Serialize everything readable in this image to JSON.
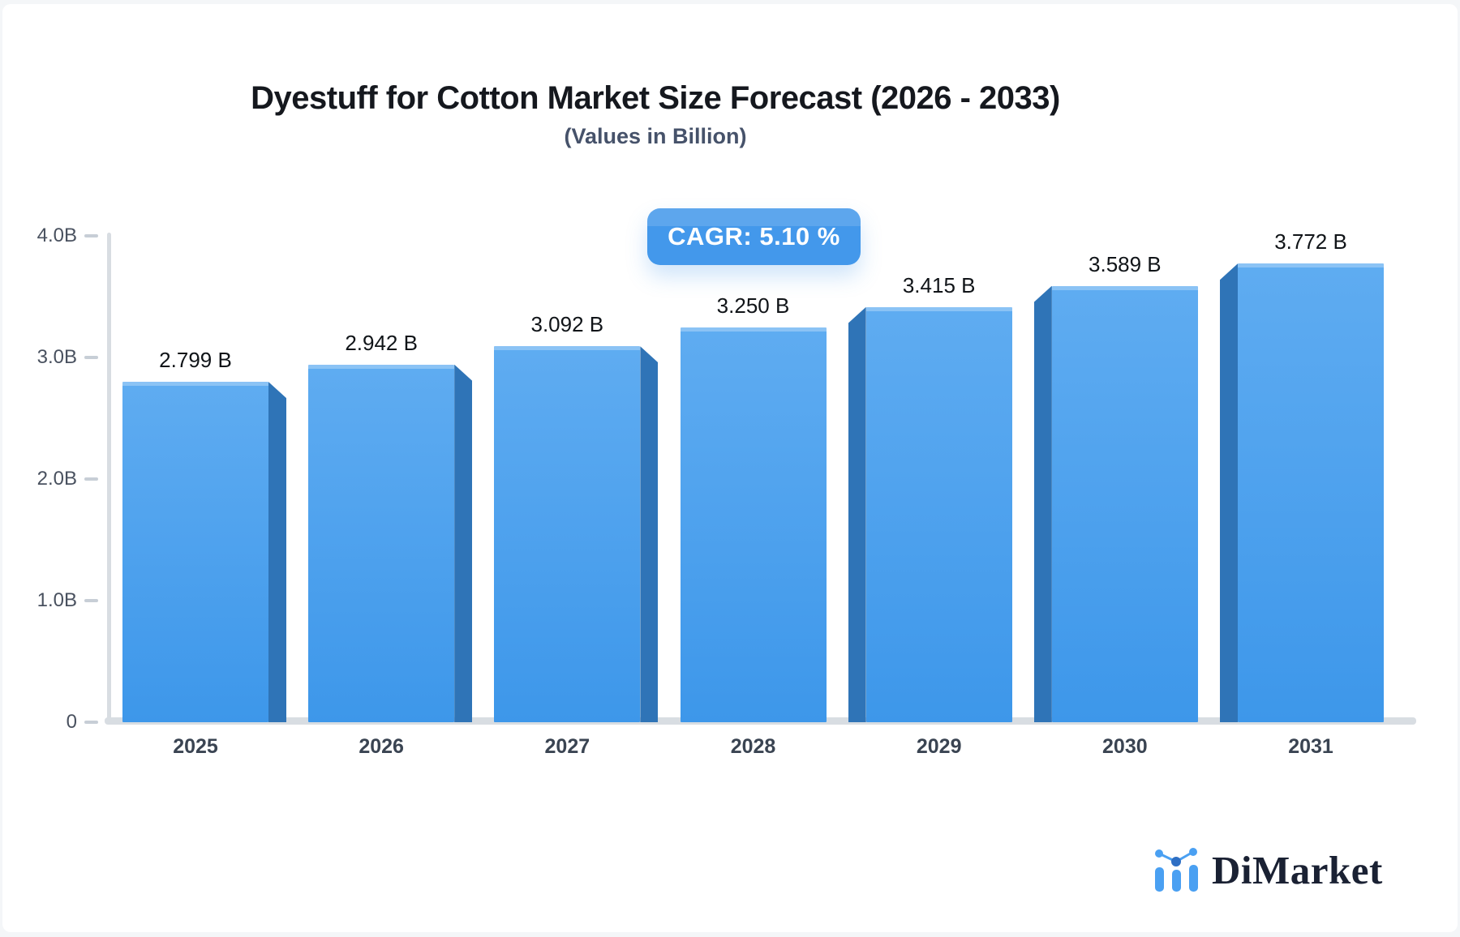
{
  "chart_data": {
    "type": "bar",
    "title": "Dyestuff for Cotton Market Size Forecast (2026 - 2033)",
    "subtitle": "(Values in Billion)",
    "annotation": "CAGR: 5.10 %",
    "categories": [
      "2025",
      "2026",
      "2027",
      "2028",
      "2029",
      "2030",
      "2031"
    ],
    "values": [
      2.799,
      2.942,
      3.092,
      3.25,
      3.415,
      3.589,
      3.772
    ],
    "bar_labels": [
      "2.799 B",
      "2.942 B",
      "3.092 B",
      "3.250 B",
      "3.415 B",
      "3.589 B",
      "3.772 B"
    ],
    "xlabel": "",
    "ylabel": "",
    "ylim": [
      0,
      4.0
    ],
    "yticks": [
      {
        "label": "4.0B",
        "value": 4.0
      },
      {
        "label": "3.0B",
        "value": 3.0
      },
      {
        "label": "2.0B",
        "value": 2.0
      },
      {
        "label": "1.0B",
        "value": 1.0
      },
      {
        "label": "0",
        "value": 0.0
      }
    ],
    "grid": false,
    "legend": "none"
  },
  "logo": {
    "name": "DiMarket",
    "icon": "mini-bar-chart-icon"
  },
  "colors": {
    "title_text": "#15181e",
    "subtitle_text": "#46526a",
    "badge_bg": "#4398eb",
    "badge_text": "#ffffff",
    "bar_face_top": "#5facf1",
    "bar_face_bottom": "#3d97ea",
    "bar_side": "#2f74b7",
    "axis_color": "#d8dde2",
    "dash_color": "#c7ced6",
    "tick_text": "#49515f",
    "value_text": "#101418",
    "year_text": "#3a4452",
    "logo_text": "#1a2133",
    "logo_icon_light": "#4aa0f2",
    "logo_icon_dark": "#2e6fc4"
  }
}
